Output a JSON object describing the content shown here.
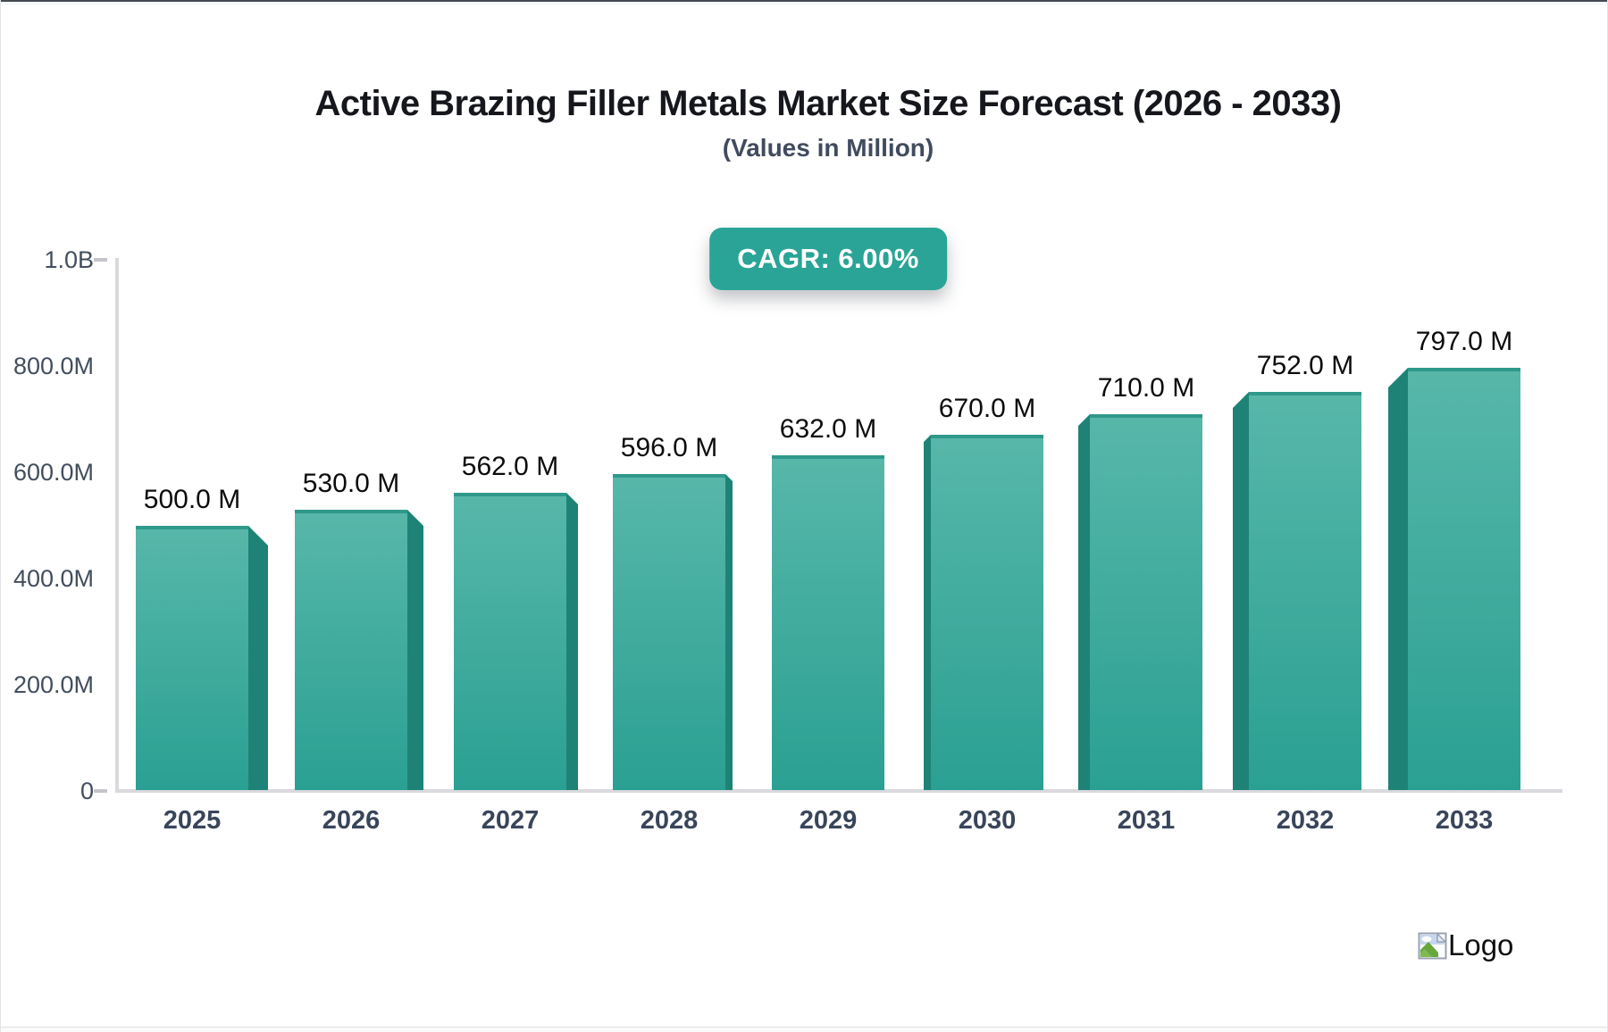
{
  "header": {
    "title": "Active Brazing Filler Metals Market Size Forecast (2026 - 2033)",
    "subtitle": "(Values in Million)",
    "cagr_badge": "CAGR: 6.00%"
  },
  "chart_data": {
    "type": "bar",
    "title": "Active Brazing Filler Metals Market Size Forecast (2026 - 2033)",
    "subtitle": "(Values in Million)",
    "cagr_percent": "6.00%",
    "unit": "Million",
    "categories": [
      "2025",
      "2026",
      "2027",
      "2028",
      "2029",
      "2030",
      "2031",
      "2032",
      "2033"
    ],
    "values": [
      500,
      530,
      562,
      596,
      632,
      670,
      710,
      752,
      797
    ],
    "value_labels": [
      "500.0 M",
      "530.0 M",
      "562.0 M",
      "596.0 M",
      "632.0 M",
      "670.0 M",
      "710.0 M",
      "752.0 M",
      "797.0 M"
    ],
    "y_axis_tick_labels": [
      "1.0B",
      "800.0M",
      "600.0M",
      "400.0M",
      "200.0M",
      "0"
    ],
    "y_axis_tick_values": [
      1000,
      800,
      600,
      400,
      200,
      0
    ],
    "ylim": [
      0,
      1000
    ],
    "grid": false,
    "legend_position": "none",
    "colors": {
      "bar_face_top": "#57b7a9",
      "bar_face_bottom": "#2aa093",
      "bar_side": "#1e8376",
      "bar_top_edge": "#2f998b",
      "badge_background": "#2aa496",
      "axis_line": "#d9d9de",
      "value_label_color": "#0c0c0d",
      "year_label_color": "#39455a",
      "y_tick_label_color": "#424e5e"
    }
  },
  "logo": {
    "alt_text": "Logo"
  }
}
